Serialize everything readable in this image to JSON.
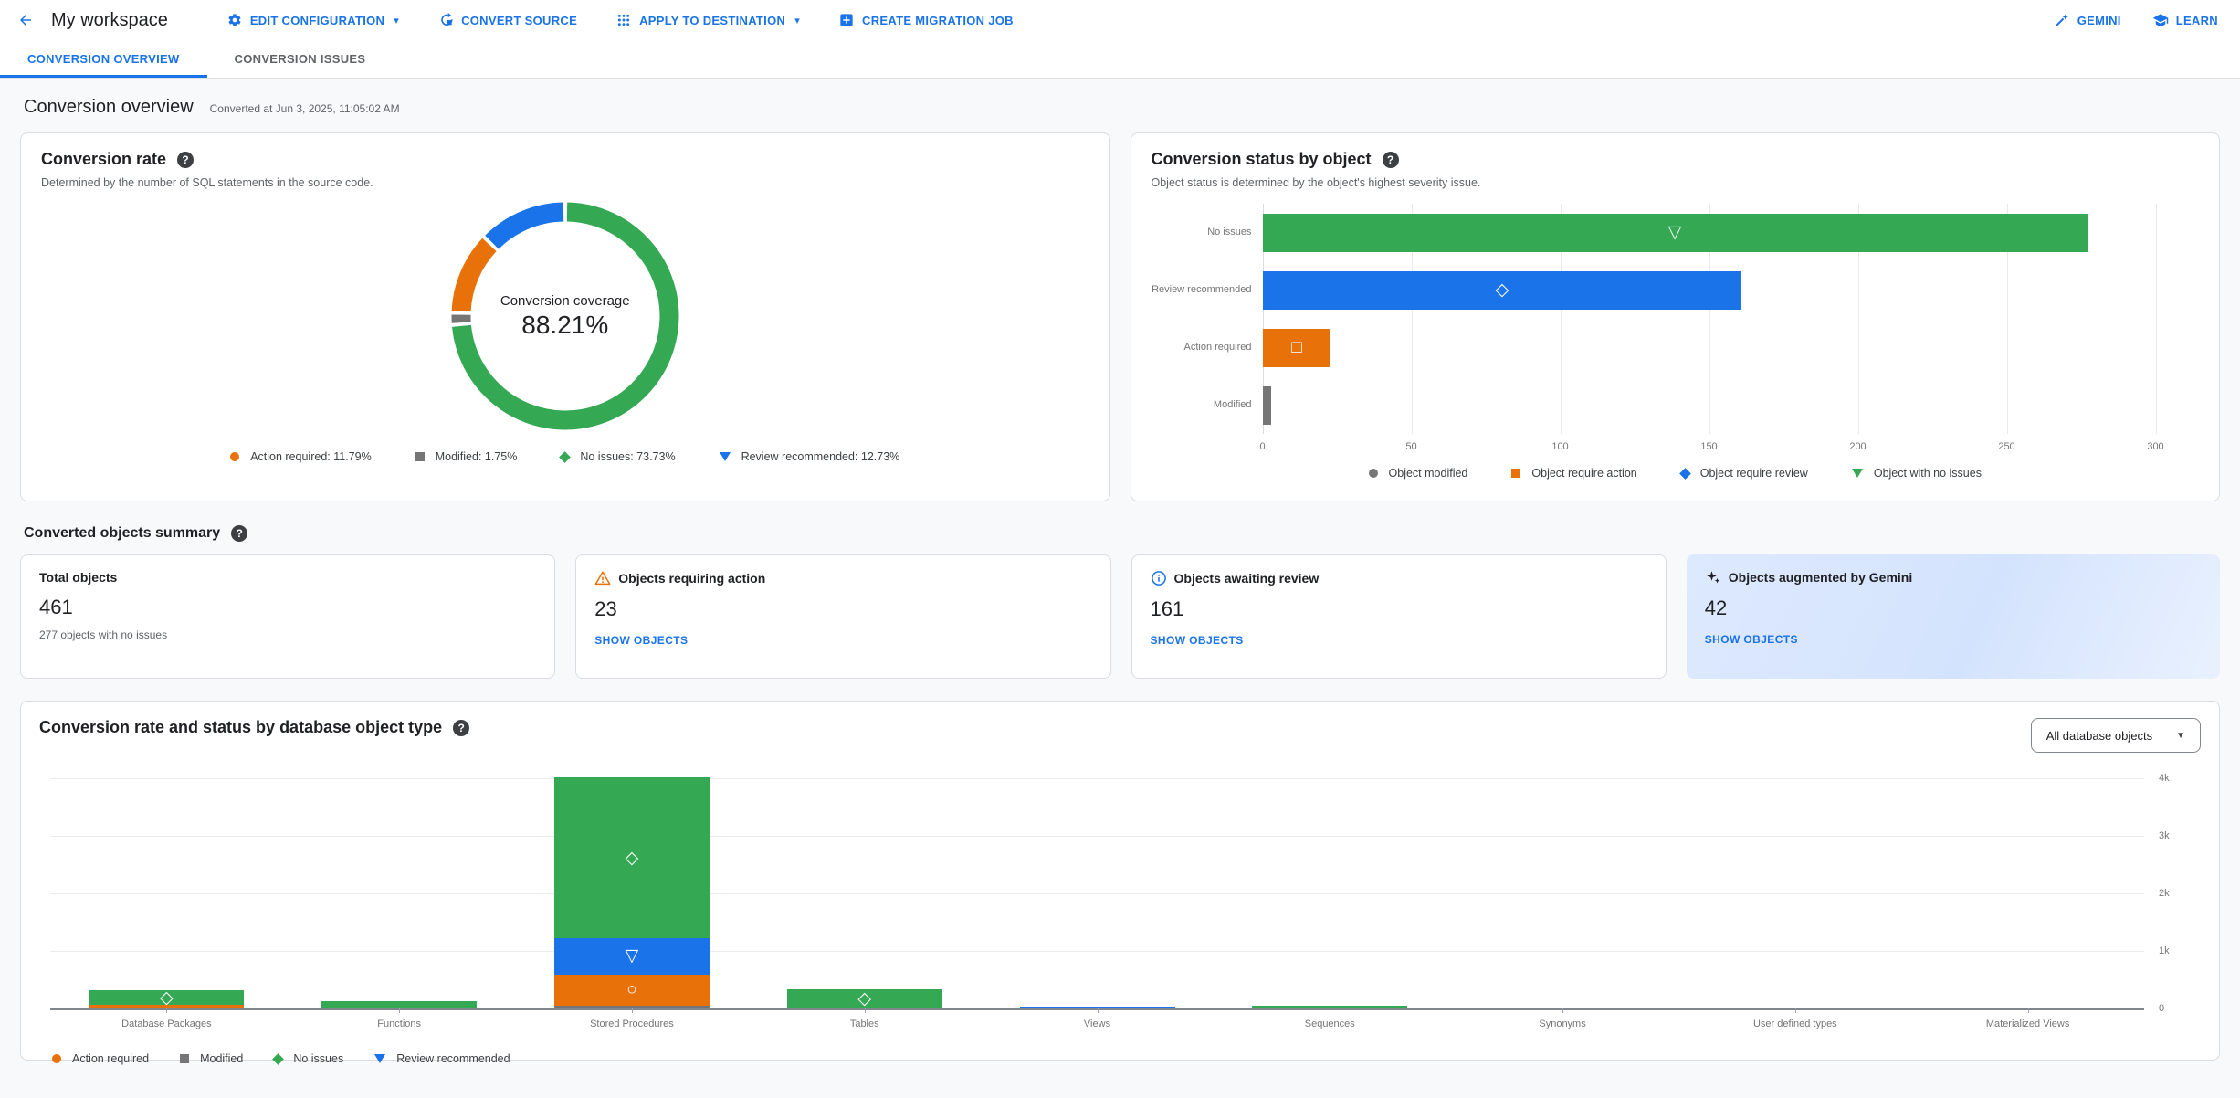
{
  "icons": {
    "help_glyph": "?",
    "caret_glyph": "▾",
    "markers": {
      "circle": "○",
      "square": "□",
      "diamond": "◇",
      "triangle-down": "▽"
    }
  },
  "colors": {
    "accent_blue": "#1a73e8",
    "green": "#34a853",
    "orange": "#e8710a",
    "gray": "#757575"
  },
  "header": {
    "title": "My workspace",
    "toolbar": [
      {
        "label": "EDIT CONFIGURATION",
        "caret": true
      },
      {
        "label": "CONVERT SOURCE",
        "caret": false
      },
      {
        "label": "APPLY TO DESTINATION",
        "caret": true
      },
      {
        "label": "CREATE MIGRATION JOB",
        "caret": false
      }
    ],
    "gemini_label": "GEMINI",
    "learn_label": "LEARN"
  },
  "tabs": [
    {
      "label": "CONVERSION OVERVIEW",
      "active": true
    },
    {
      "label": "CONVERSION ISSUES",
      "active": false
    }
  ],
  "page": {
    "title": "Conversion overview",
    "converted_at": "Converted at Jun 3, 2025, 11:05:02 AM"
  },
  "conversion_rate": {
    "title": "Conversion rate",
    "description": "Determined by the number of SQL statements in the source code."
  },
  "conversion_status": {
    "title": "Conversion status by object",
    "description": "Object status is determined by the object's highest severity issue."
  },
  "summary": {
    "title": "Converted objects summary",
    "cards": [
      {
        "title": "Total objects",
        "value": "461",
        "subtitle": "277 objects with no issues"
      },
      {
        "title": "Objects requiring action",
        "value": "23",
        "link": "SHOW OBJECTS"
      },
      {
        "title": "Objects awaiting review",
        "value": "161",
        "link": "SHOW OBJECTS"
      },
      {
        "title": "Objects augmented by Gemini",
        "value": "42",
        "link": "SHOW OBJECTS"
      }
    ]
  },
  "by_type": {
    "title": "Conversion rate and status by database object type",
    "filter_value": "All database objects"
  },
  "chart_data": [
    {
      "type": "pie",
      "variant": "donut",
      "title": "Conversion rate",
      "center_label": "Conversion coverage",
      "center_value": "88.21%",
      "slices": [
        {
          "name": "No issues",
          "value": 73.73,
          "color": "#34a853"
        },
        {
          "name": "Modified",
          "value": 1.75,
          "color": "#757575"
        },
        {
          "name": "Action required",
          "value": 11.79,
          "color": "#e8710a"
        },
        {
          "name": "Review recommended",
          "value": 12.73,
          "color": "#1a73e8"
        }
      ],
      "legend": [
        {
          "label": "Action required: 11.79%",
          "shape": "circle",
          "color": "#e8710a"
        },
        {
          "label": "Modified: 1.75%",
          "shape": "square",
          "color": "#757575"
        },
        {
          "label": "No issues: 73.73%",
          "shape": "diamond",
          "color": "#34a853"
        },
        {
          "label": "Review recommended: 12.73%",
          "shape": "triangle-down",
          "color": "#1a73e8"
        }
      ]
    },
    {
      "type": "bar",
      "orientation": "horizontal",
      "title": "Conversion status by object",
      "categories": [
        "No issues",
        "Review recommended",
        "Action required",
        "Modified"
      ],
      "values": [
        277,
        161,
        23,
        3
      ],
      "colors": [
        "#34a853",
        "#1a73e8",
        "#e8710a",
        "#757575"
      ],
      "markers": [
        "triangle-down",
        "diamond",
        "square",
        "circle"
      ],
      "xlim": [
        0,
        300
      ],
      "xticks": [
        0,
        50,
        100,
        150,
        200,
        250,
        300
      ],
      "legend": [
        {
          "label": "Object modified",
          "shape": "circle",
          "color": "#757575"
        },
        {
          "label": "Object require action",
          "shape": "square",
          "color": "#e8710a"
        },
        {
          "label": "Object require review",
          "shape": "diamond",
          "color": "#1a73e8"
        },
        {
          "label": "Object with no issues",
          "shape": "triangle-down",
          "color": "#34a853"
        }
      ]
    },
    {
      "type": "bar",
      "variant": "stacked",
      "title": "Conversion rate and status by database object type",
      "categories": [
        "Database Packages",
        "Functions",
        "Stored Procedures",
        "Tables",
        "Views",
        "Sequences",
        "Synonyms",
        "User defined types",
        "Materialized Views"
      ],
      "series": [
        {
          "name": "Modified",
          "color": "#757575",
          "marker": "square",
          "values": [
            0,
            0,
            55,
            0,
            0,
            0,
            0,
            0,
            0
          ]
        },
        {
          "name": "Action required",
          "color": "#e8710a",
          "marker": "circle",
          "values": [
            60,
            20,
            540,
            0,
            0,
            0,
            0,
            0,
            0
          ]
        },
        {
          "name": "Review recommended",
          "color": "#1a73e8",
          "marker": "triangle-down",
          "values": [
            0,
            0,
            620,
            0,
            30,
            0,
            0,
            0,
            0
          ]
        },
        {
          "name": "No issues",
          "color": "#34a853",
          "marker": "diamond",
          "values": [
            250,
            110,
            2800,
            340,
            0,
            50,
            0,
            0,
            0
          ]
        }
      ],
      "ylim": [
        0,
        4000
      ],
      "yticks": [
        "0",
        "1k",
        "2k",
        "3k",
        "4k"
      ],
      "legend": [
        {
          "label": "Action required",
          "shape": "circle",
          "color": "#e8710a"
        },
        {
          "label": "Modified",
          "shape": "square",
          "color": "#757575"
        },
        {
          "label": "No issues",
          "shape": "diamond",
          "color": "#34a853"
        },
        {
          "label": "Review recommended",
          "shape": "triangle-down",
          "color": "#1a73e8"
        }
      ]
    }
  ]
}
